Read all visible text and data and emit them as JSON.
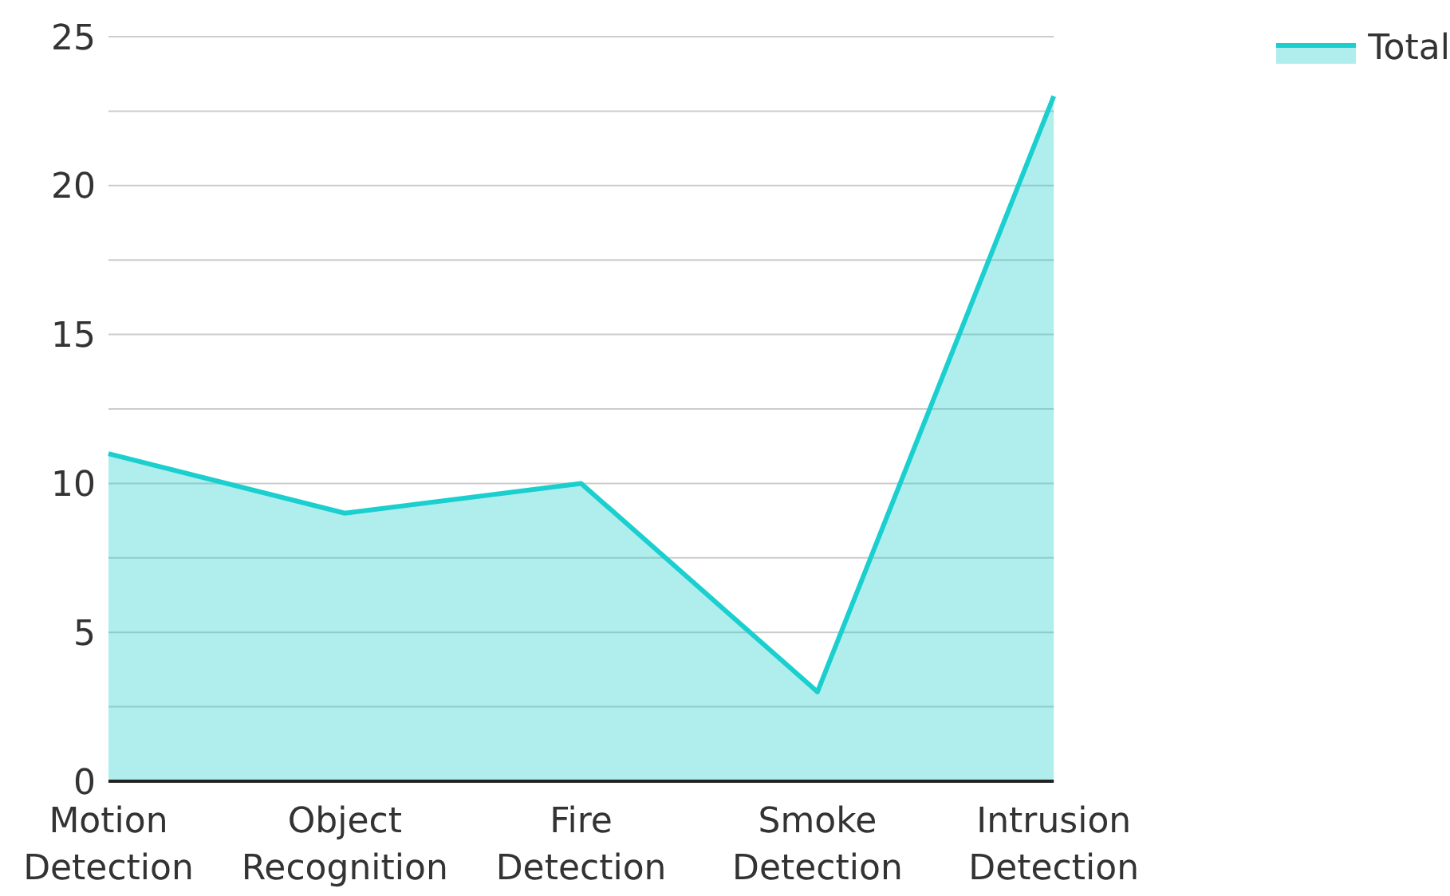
{
  "chart_data": {
    "type": "area",
    "categories": [
      "Motion Detection",
      "Object Recognition",
      "Fire Detection",
      "Smoke Detection",
      "Intrusion Detection"
    ],
    "series": [
      {
        "name": "Total",
        "color": "#1ccfcf",
        "values": [
          11,
          9,
          10,
          3,
          23
        ]
      }
    ],
    "ylim": [
      0,
      25
    ],
    "yticks": [
      0,
      {
        "value": 2.5,
        "label": null
      },
      5,
      {
        "value": 7.5,
        "label": null
      },
      10,
      {
        "value": 12.5,
        "label": null
      },
      15,
      {
        "value": 17.5,
        "label": null
      },
      20,
      {
        "value": 22.5,
        "label": null
      },
      25
    ],
    "grid": "y",
    "legend": "top right"
  }
}
